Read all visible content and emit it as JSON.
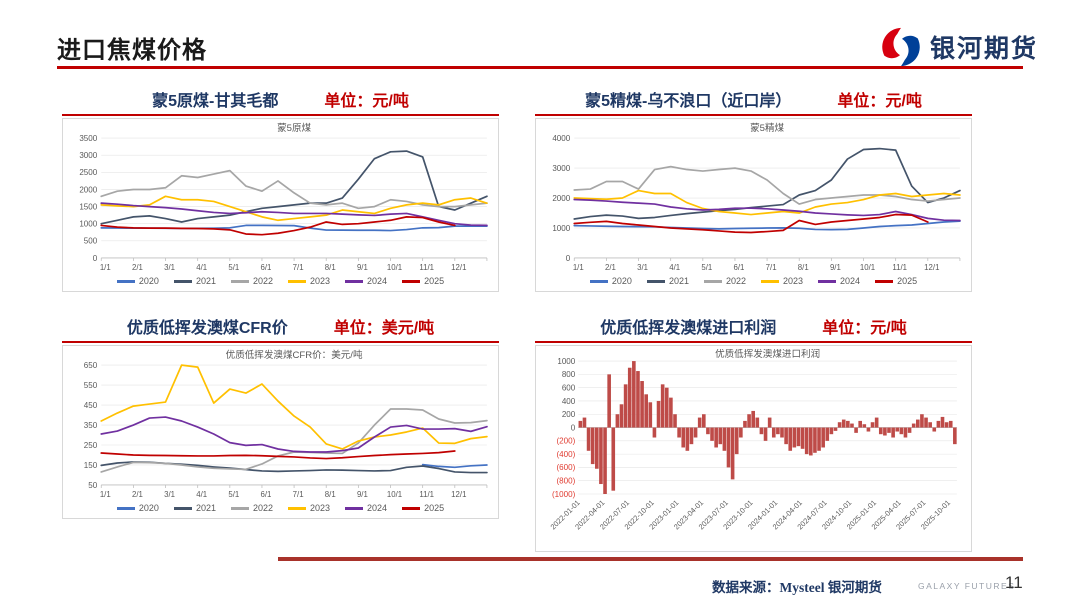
{
  "page": {
    "title": "进口焦煤价格",
    "brand_cn": "银河期货",
    "footer_source": "数据来源：Mysteel 银河期货",
    "footer_brand": "GALAXY FUTURES",
    "page_number": "11",
    "accent_red": "#C00000",
    "header_navy": "#1F3864"
  },
  "palette": {
    "2020": "#4472C4",
    "2021": "#44546A",
    "2022": "#A6A6A6",
    "2023": "#FFC000",
    "2024": "#7030A0",
    "2025": "#C00000"
  },
  "panels": [
    {
      "title": "蒙5原煤-甘其毛都",
      "unit": "单位：元/吨"
    },
    {
      "title": "蒙5精煤-乌不浪口（近口岸）",
      "unit": "单位：元/吨"
    },
    {
      "title": "优质低挥发澳煤CFR价",
      "unit": "单位：美元/吨"
    },
    {
      "title": "优质低挥发澳煤进口利润",
      "unit": "单位：元/吨"
    }
  ],
  "chart_data": [
    {
      "type": "line",
      "title": "蒙5原煤",
      "ylabel": "元/吨",
      "ylim": [
        0,
        3500
      ],
      "ytick_step": 500,
      "grid": true,
      "legend_position": "bottom",
      "x_labels": [
        "1/1",
        "2/1",
        "3/1",
        "4/1",
        "5/1",
        "6/1",
        "7/1",
        "8/1",
        "9/1",
        "10/1",
        "11/1",
        "12/1"
      ],
      "x_note": "values sampled semi-monthly, 25 points per year",
      "series": [
        {
          "name": "2020",
          "values": [
            880,
            875,
            870,
            870,
            868,
            865,
            865,
            868,
            880,
            950,
            950,
            948,
            945,
            870,
            815,
            812,
            810,
            808,
            800,
            830,
            880,
            885,
            930,
            930,
            930
          ]
        },
        {
          "name": "2021",
          "values": [
            1000,
            1100,
            1200,
            1230,
            1150,
            1050,
            1150,
            1200,
            1250,
            1350,
            1450,
            1500,
            1550,
            1600,
            1600,
            1750,
            2300,
            2900,
            3100,
            3120,
            2950,
            1500,
            1400,
            1600,
            1800
          ]
        },
        {
          "name": "2022",
          "values": [
            1800,
            1950,
            2000,
            2000,
            2050,
            2400,
            2350,
            2450,
            2550,
            2100,
            1950,
            2250,
            1900,
            1600,
            1550,
            1600,
            1450,
            1500,
            1700,
            1650,
            1550,
            1500,
            1500,
            1550,
            1600
          ]
        },
        {
          "name": "2023",
          "values": [
            1550,
            1520,
            1500,
            1550,
            1800,
            1700,
            1700,
            1650,
            1500,
            1350,
            1200,
            1100,
            1150,
            1200,
            1250,
            1400,
            1350,
            1300,
            1450,
            1550,
            1600,
            1550,
            1700,
            1750,
            1600
          ]
        },
        {
          "name": "2024",
          "values": [
            1600,
            1570,
            1530,
            1500,
            1470,
            1430,
            1380,
            1330,
            1300,
            1320,
            1350,
            1330,
            1300,
            1300,
            1300,
            1280,
            1260,
            1240,
            1280,
            1300,
            1200,
            1100,
            1000,
            960,
            950
          ]
        },
        {
          "name": "2025",
          "values": [
            950,
            900,
            880,
            870,
            870,
            865,
            860,
            850,
            820,
            700,
            680,
            720,
            800,
            900,
            1050,
            980,
            1000,
            1050,
            1100,
            1200,
            1180,
            1050,
            950,
            null,
            null
          ]
        }
      ]
    },
    {
      "type": "line",
      "title": "蒙5精煤",
      "ylabel": "元/吨",
      "ylim": [
        0,
        4000
      ],
      "ytick_step": 1000,
      "grid": true,
      "legend_position": "bottom",
      "x_labels": [
        "1/1",
        "2/1",
        "3/1",
        "4/1",
        "5/1",
        "6/1",
        "7/1",
        "8/1",
        "9/1",
        "10/1",
        "11/1",
        "12/1"
      ],
      "series": [
        {
          "name": "2020",
          "values": [
            1080,
            1070,
            1060,
            1050,
            1045,
            1040,
            1020,
            1000,
            980,
            970,
            980,
            990,
            1000,
            1005,
            990,
            950,
            945,
            955,
            1000,
            1050,
            1080,
            1100,
            1150,
            1200,
            1230
          ]
        },
        {
          "name": "2021",
          "values": [
            1300,
            1380,
            1430,
            1400,
            1320,
            1350,
            1420,
            1480,
            1530,
            1580,
            1620,
            1680,
            1730,
            1780,
            2100,
            2250,
            2600,
            3300,
            3620,
            3650,
            3600,
            2400,
            1850,
            2000,
            2250
          ]
        },
        {
          "name": "2022",
          "values": [
            2270,
            2300,
            2550,
            2550,
            2300,
            2950,
            3050,
            2950,
            2900,
            2950,
            3000,
            2900,
            2600,
            2150,
            1800,
            1950,
            2000,
            2050,
            2100,
            2100,
            2050,
            1950,
            1900,
            1950,
            2000
          ]
        },
        {
          "name": "2023",
          "values": [
            2000,
            1980,
            1960,
            2000,
            2250,
            2150,
            2150,
            1850,
            1650,
            1550,
            1500,
            1450,
            1500,
            1550,
            1500,
            1700,
            1800,
            1850,
            1950,
            2100,
            2150,
            2050,
            2100,
            2150,
            2100
          ]
        },
        {
          "name": "2024",
          "values": [
            1950,
            1930,
            1900,
            1860,
            1830,
            1800,
            1700,
            1640,
            1600,
            1620,
            1660,
            1660,
            1640,
            1600,
            1560,
            1500,
            1470,
            1440,
            1420,
            1450,
            1550,
            1450,
            1320,
            1260,
            1250
          ]
        },
        {
          "name": "2025",
          "values": [
            1150,
            1190,
            1220,
            1150,
            1100,
            1050,
            1000,
            970,
            940,
            900,
            860,
            850,
            880,
            920,
            1250,
            1120,
            1200,
            1250,
            1300,
            1350,
            1450,
            1430,
            1200,
            null,
            null
          ]
        }
      ]
    },
    {
      "type": "line",
      "title": "优质低挥发澳煤CFR价：美元/吨",
      "ylabel": "美元/吨",
      "ylim": [
        50,
        650
      ],
      "ytick_step": 100,
      "grid": true,
      "legend_position": "bottom",
      "x_labels": [
        "1/1",
        "2/1",
        "3/1",
        "4/1",
        "5/1",
        "6/1",
        "7/1",
        "8/1",
        "9/1",
        "10/1",
        "11/1",
        "12/1"
      ],
      "series": [
        {
          "name": "2020",
          "values": [
            null,
            null,
            null,
            null,
            null,
            null,
            null,
            null,
            null,
            null,
            null,
            null,
            null,
            null,
            null,
            null,
            null,
            null,
            null,
            null,
            152,
            143,
            138,
            146,
            150
          ]
        },
        {
          "name": "2021",
          "values": [
            148,
            160,
            165,
            164,
            158,
            154,
            148,
            140,
            134,
            127,
            120,
            118,
            120,
            122,
            125,
            124,
            122,
            120,
            122,
            138,
            145,
            132,
            115,
            112,
            112
          ]
        },
        {
          "name": "2022",
          "values": [
            115,
            140,
            163,
            162,
            158,
            150,
            140,
            133,
            130,
            128,
            155,
            195,
            215,
            213,
            210,
            208,
            260,
            350,
            430,
            430,
            425,
            380,
            360,
            362,
            372
          ]
        },
        {
          "name": "2023",
          "values": [
            370,
            410,
            445,
            455,
            465,
            650,
            640,
            460,
            530,
            510,
            555,
            470,
            395,
            340,
            255,
            230,
            270,
            290,
            300,
            315,
            335,
            260,
            258,
            282,
            292
          ]
        },
        {
          "name": "2024",
          "values": [
            305,
            320,
            350,
            385,
            390,
            370,
            340,
            305,
            262,
            248,
            252,
            230,
            218,
            215,
            215,
            222,
            235,
            290,
            340,
            348,
            330,
            330,
            332,
            318,
            342
          ]
        },
        {
          "name": "2025",
          "values": [
            210,
            205,
            200,
            198,
            197,
            196,
            195,
            195,
            197,
            198,
            196,
            193,
            190,
            185,
            182,
            186,
            192,
            197,
            202,
            205,
            208,
            212,
            220,
            null,
            null
          ]
        }
      ]
    },
    {
      "type": "bar",
      "title": "优质低挥发澳煤进口利润",
      "ylabel": "元/吨",
      "ylim": [
        -1000,
        1000
      ],
      "ytick_step": 200,
      "grid": true,
      "bar_color": "#BE4B48",
      "neg_tick_color": "#E03C31",
      "pos_tick_color": "#595959",
      "x_labels": [
        "2022-01-01",
        "2022-04-01",
        "2022-07-01",
        "2022-10-01",
        "2023-01-01",
        "2023-04-01",
        "2023-07-01",
        "2023-10-01",
        "2024-01-01",
        "2024-04-01",
        "2024-07-01",
        "2024-10-01",
        "2025-01-01",
        "2025-04-01",
        "2025-07-01",
        "2025-10-01"
      ],
      "label_every": 6,
      "x_note": "values sampled semi-monthly from 2022-01 to 2025-11",
      "values": [
        100,
        150,
        -350,
        -550,
        -620,
        -850,
        -1000,
        800,
        -950,
        200,
        350,
        650,
        900,
        1000,
        850,
        700,
        500,
        380,
        -150,
        400,
        650,
        600,
        450,
        200,
        -150,
        -300,
        -350,
        -250,
        -150,
        150,
        200,
        -100,
        -200,
        -300,
        -250,
        -350,
        -600,
        -780,
        -400,
        -150,
        100,
        200,
        250,
        150,
        -100,
        -200,
        150,
        -150,
        -100,
        -150,
        -250,
        -350,
        -300,
        -280,
        -320,
        -400,
        -420,
        -380,
        -350,
        -300,
        -200,
        -100,
        -50,
        80,
        120,
        100,
        60,
        -80,
        100,
        50,
        -60,
        80,
        150,
        -100,
        -120,
        -80,
        -150,
        -60,
        -100,
        -150,
        -80,
        60,
        120,
        200,
        150,
        80,
        -60,
        100,
        160,
        80,
        100,
        -250
      ]
    }
  ]
}
